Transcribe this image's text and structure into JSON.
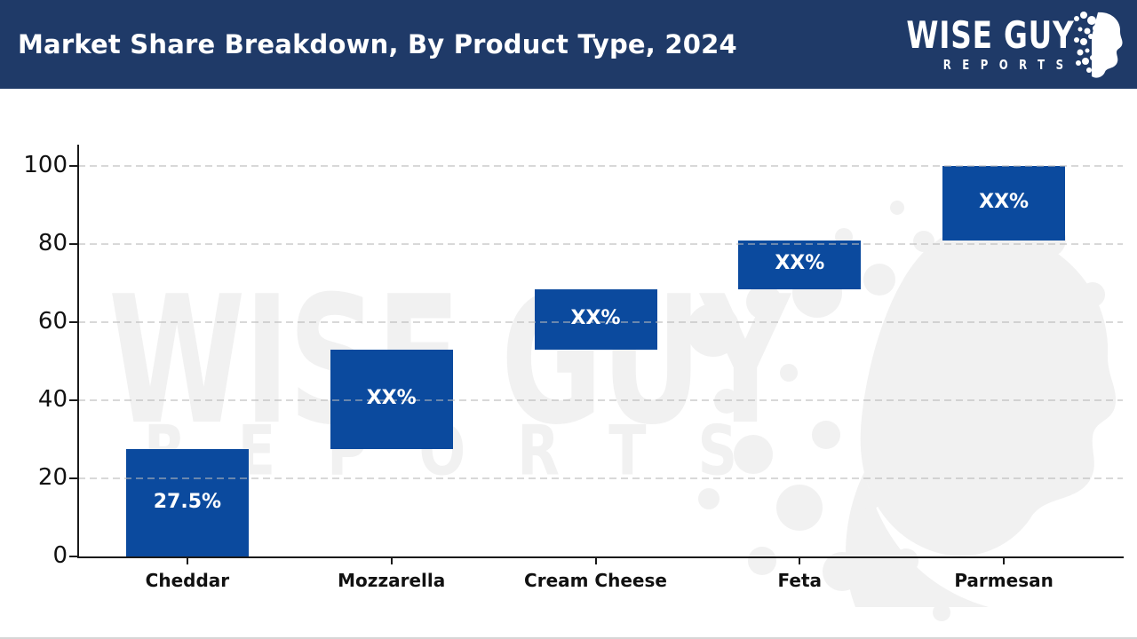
{
  "header": {
    "title": "Market Share Breakdown, By Product Type, 2024",
    "logo": {
      "wordmark": "WISE GUY",
      "subtext": "REPORTS"
    }
  },
  "watermark": {
    "wordmark": "WISE GUY",
    "subtext": "REPORTS"
  },
  "colors": {
    "header_bg": "#1f3a68",
    "bar_fill": "#0b4a9e",
    "bar_label": "#ffffff",
    "grid_line": "#d9d9d9",
    "axis_line": "#1a1a1a",
    "tick_label": "#111111",
    "watermark": "#f1f1f1"
  },
  "chart_data": {
    "type": "bar",
    "subtype": "floating-waterfall",
    "title": "Market Share Breakdown, By Product Type, 2024",
    "xlabel": "",
    "ylabel": "",
    "ylim": [
      0,
      105
    ],
    "y_ticks": [
      0,
      20,
      40,
      60,
      80,
      100
    ],
    "grid": "horizontal-dashed",
    "legend": "none",
    "categories": [
      "Cheddar",
      "Mozzarella",
      "Cream Cheese",
      "Feta",
      "Parmesan"
    ],
    "segments": [
      {
        "category": "Cheddar",
        "start": 0,
        "end": 27.5,
        "label": "27.5%"
      },
      {
        "category": "Mozzarella",
        "start": 27.5,
        "end": 53,
        "label": "XX%"
      },
      {
        "category": "Cream Cheese",
        "start": 53,
        "end": 68.5,
        "label": "XX%"
      },
      {
        "category": "Feta",
        "start": 68.5,
        "end": 81,
        "label": "XX%"
      },
      {
        "category": "Parmesan",
        "start": 81,
        "end": 100,
        "label": "XX%"
      }
    ]
  }
}
